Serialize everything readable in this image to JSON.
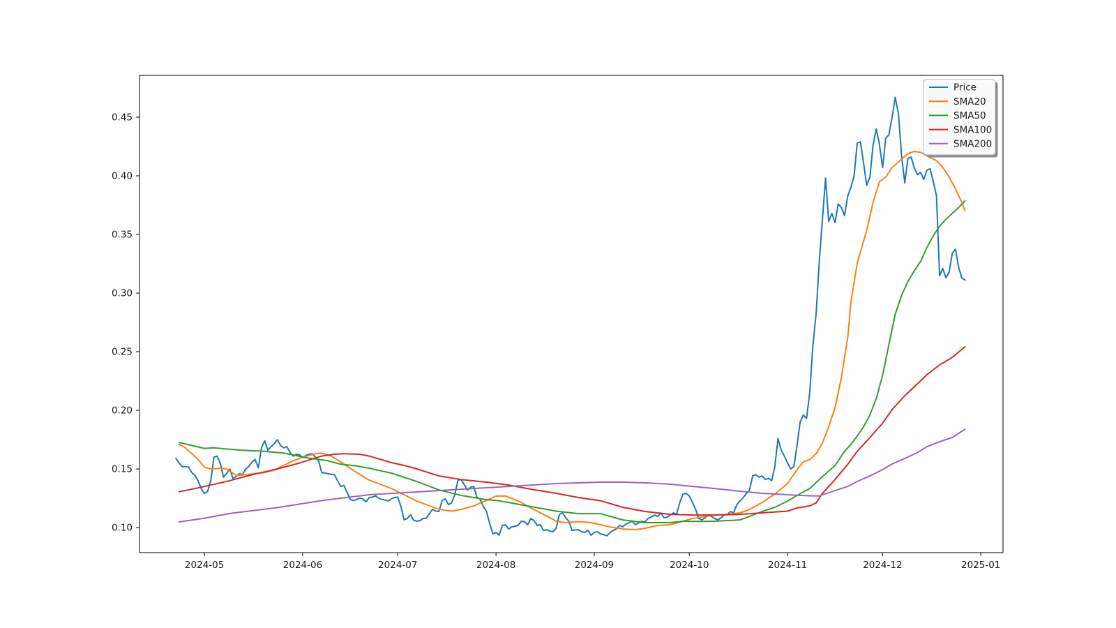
{
  "figure": {
    "background_color": "#ffffff",
    "plot_border_color": "#000000"
  },
  "chart_data": {
    "type": "line",
    "title": "",
    "xlabel": "",
    "ylabel": "",
    "grid": false,
    "x_axis": {
      "epoch": "2024-04-22",
      "domain_days": [
        -11.5,
        261
      ],
      "ticks": [
        {
          "day": 9,
          "label": "2024-05"
        },
        {
          "day": 40,
          "label": "2024-06"
        },
        {
          "day": 70,
          "label": "2024-07"
        },
        {
          "day": 101,
          "label": "2024-08"
        },
        {
          "day": 132,
          "label": "2024-09"
        },
        {
          "day": 162,
          "label": "2024-10"
        },
        {
          "day": 193,
          "label": "2024-11"
        },
        {
          "day": 223,
          "label": "2024-12"
        },
        {
          "day": 254,
          "label": "2025-01"
        }
      ]
    },
    "y_axis": {
      "domain": [
        0.0786,
        0.4857
      ],
      "ticks": [
        0.1,
        0.15,
        0.2,
        0.25,
        0.3,
        0.35,
        0.4,
        0.45
      ]
    },
    "legend": {
      "position": "upper-right",
      "border_color": "#b0b0b0",
      "fill_color": "#ffffff",
      "shadow": true,
      "shadow_color": "#8a8a8a",
      "entries": [
        "Price",
        "SMA20",
        "SMA50",
        "SMA100",
        "SMA200"
      ]
    },
    "series": [
      {
        "name": "Price",
        "color": "#1f77b4",
        "line_width": 2,
        "start_day": 0,
        "step_days": 1,
        "values": [
          0.159,
          0.155,
          0.152,
          0.152,
          0.1515,
          0.147,
          0.1445,
          0.14,
          0.133,
          0.129,
          0.131,
          0.14,
          0.16,
          0.161,
          0.155,
          0.143,
          0.146,
          0.15,
          0.142,
          0.1435,
          0.146,
          0.145,
          0.15,
          0.152,
          0.156,
          0.158,
          0.151,
          0.168,
          0.174,
          0.166,
          0.169,
          0.1715,
          0.175,
          0.17,
          0.168,
          0.169,
          0.164,
          0.161,
          0.1625,
          0.162,
          0.16,
          0.1615,
          0.1625,
          0.163,
          0.16,
          0.157,
          0.147,
          0.1465,
          0.146,
          0.1455,
          0.145,
          0.14,
          0.135,
          0.136,
          0.13,
          0.124,
          0.123,
          0.124,
          0.125,
          0.1245,
          0.122,
          0.1256,
          0.126,
          0.127,
          0.125,
          0.124,
          0.1235,
          0.1226,
          0.1245,
          0.1256,
          0.126,
          0.118,
          0.1065,
          0.1077,
          0.111,
          0.1064,
          0.1054,
          0.106,
          0.1077,
          0.108,
          0.112,
          0.1155,
          0.114,
          0.1137,
          0.1232,
          0.1244,
          0.1196,
          0.121,
          0.128,
          0.1405,
          0.141,
          0.1365,
          0.132,
          0.1345,
          0.135,
          0.1256,
          0.124,
          0.118,
          0.1137,
          0.1036,
          0.0946,
          0.0958,
          0.0935,
          0.1018,
          0.1024,
          0.0988,
          0.1006,
          0.1012,
          0.1018,
          0.1054,
          0.105,
          0.1024,
          0.1077,
          0.106,
          0.1018,
          0.1024,
          0.0976,
          0.0982,
          0.097,
          0.0964,
          0.0994,
          0.1113,
          0.1125,
          0.1083,
          0.1054,
          0.0976,
          0.098,
          0.0982,
          0.0964,
          0.0958,
          0.0976,
          0.0935,
          0.0958,
          0.0964,
          0.0946,
          0.094,
          0.0929,
          0.0958,
          0.0976,
          0.0988,
          0.1018,
          0.1006,
          0.103,
          0.1042,
          0.1054,
          0.1024,
          0.104,
          0.1054,
          0.1048,
          0.1077,
          0.109,
          0.1107,
          0.1095,
          0.1125,
          0.1083,
          0.109,
          0.1107,
          0.1125,
          0.1113,
          0.1214,
          0.1286,
          0.129,
          0.127,
          0.1214,
          0.1155,
          0.1077,
          0.1065,
          0.1083,
          0.1107,
          0.1095,
          0.1077,
          0.1065,
          0.1083,
          0.1107,
          0.1113,
          0.1137,
          0.1125,
          0.1196,
          0.1226,
          0.1256,
          0.129,
          0.132,
          0.144,
          0.145,
          0.143,
          0.144,
          0.141,
          0.142,
          0.14,
          0.152,
          0.176,
          0.166,
          0.161,
          0.155,
          0.15,
          0.152,
          0.17,
          0.19,
          0.196,
          0.193,
          0.215,
          0.255,
          0.282,
          0.326,
          0.362,
          0.398,
          0.361,
          0.368,
          0.36,
          0.376,
          0.373,
          0.366,
          0.383,
          0.39,
          0.4,
          0.428,
          0.429,
          0.411,
          0.392,
          0.399,
          0.426,
          0.44,
          0.427,
          0.407,
          0.432,
          0.435,
          0.45,
          0.467,
          0.453,
          0.417,
          0.394,
          0.415,
          0.416,
          0.407,
          0.401,
          0.403,
          0.397,
          0.405,
          0.406,
          0.395,
          0.383,
          0.315,
          0.321,
          0.313,
          0.318,
          0.334,
          0.3375,
          0.322,
          0.313,
          0.311
        ]
      },
      {
        "name": "SMA20",
        "color": "#ff7f0e",
        "line_width": 2,
        "points": [
          [
            1,
            0.171
          ],
          [
            3,
            0.168
          ],
          [
            5,
            0.163
          ],
          [
            7,
            0.158
          ],
          [
            9,
            0.1515
          ],
          [
            11,
            0.15
          ],
          [
            14,
            0.1505
          ],
          [
            16,
            0.15
          ],
          [
            19,
            0.1445
          ],
          [
            22,
            0.145
          ],
          [
            25,
            0.146
          ],
          [
            28,
            0.147
          ],
          [
            31,
            0.149
          ],
          [
            34,
            0.153
          ],
          [
            37,
            0.157
          ],
          [
            40,
            0.16
          ],
          [
            44,
            0.163
          ],
          [
            46,
            0.1635
          ],
          [
            49,
            0.161
          ],
          [
            52,
            0.156
          ],
          [
            57,
            0.147
          ],
          [
            60,
            0.142
          ],
          [
            61,
            0.1405
          ],
          [
            68,
            0.1333
          ],
          [
            76,
            0.1226
          ],
          [
            83,
            0.1155
          ],
          [
            87,
            0.114
          ],
          [
            90,
            0.1155
          ],
          [
            94,
            0.1185
          ],
          [
            98,
            0.1232
          ],
          [
            101,
            0.1268
          ],
          [
            104,
            0.127
          ],
          [
            109,
            0.1214
          ],
          [
            112,
            0.1167
          ],
          [
            116,
            0.1113
          ],
          [
            120,
            0.1054
          ],
          [
            123,
            0.1042
          ],
          [
            127,
            0.105
          ],
          [
            131,
            0.1042
          ],
          [
            134,
            0.1024
          ],
          [
            137,
            0.1005
          ],
          [
            141,
            0.0988
          ],
          [
            145,
            0.0982
          ],
          [
            148,
            0.0994
          ],
          [
            152,
            0.1018
          ],
          [
            156,
            0.1024
          ],
          [
            160,
            0.1054
          ],
          [
            163,
            0.1077
          ],
          [
            167,
            0.1095
          ],
          [
            170,
            0.1107
          ],
          [
            174,
            0.1113
          ],
          [
            178,
            0.1125
          ],
          [
            181,
            0.1155
          ],
          [
            185,
            0.1214
          ],
          [
            189,
            0.1286
          ],
          [
            193,
            0.1375
          ],
          [
            196,
            0.1494
          ],
          [
            198,
            0.156
          ],
          [
            200,
            0.158
          ],
          [
            202,
            0.163
          ],
          [
            204,
            0.172
          ],
          [
            206,
            0.186
          ],
          [
            208,
            0.202
          ],
          [
            210,
            0.228
          ],
          [
            212,
            0.262
          ],
          [
            213,
            0.292
          ],
          [
            215,
            0.3256
          ],
          [
            218,
            0.3536
          ],
          [
            220,
            0.3774
          ],
          [
            222,
            0.395
          ],
          [
            224,
            0.399
          ],
          [
            226,
            0.4071
          ],
          [
            229,
            0.4143
          ],
          [
            231,
            0.419
          ],
          [
            233,
            0.4208
          ],
          [
            235,
            0.42
          ],
          [
            237,
            0.417
          ],
          [
            240,
            0.413
          ],
          [
            242,
            0.4071
          ],
          [
            244,
            0.399
          ],
          [
            246,
            0.389
          ],
          [
            248,
            0.3774
          ],
          [
            249,
            0.37
          ]
        ]
      },
      {
        "name": "SMA50",
        "color": "#2ca02c",
        "line_width": 2,
        "points": [
          [
            1,
            0.1726
          ],
          [
            5,
            0.17
          ],
          [
            9,
            0.1675
          ],
          [
            12,
            0.168
          ],
          [
            16,
            0.167
          ],
          [
            21,
            0.166
          ],
          [
            28,
            0.165
          ],
          [
            34,
            0.1635
          ],
          [
            37,
            0.162
          ],
          [
            40,
            0.16
          ],
          [
            44,
            0.1585
          ],
          [
            48,
            0.157
          ],
          [
            52,
            0.154
          ],
          [
            57,
            0.1525
          ],
          [
            61,
            0.1506
          ],
          [
            68,
            0.1464
          ],
          [
            76,
            0.1393
          ],
          [
            83,
            0.1321
          ],
          [
            90,
            0.1274
          ],
          [
            98,
            0.1238
          ],
          [
            101,
            0.1232
          ],
          [
            105,
            0.1214
          ],
          [
            112,
            0.1179
          ],
          [
            120,
            0.114
          ],
          [
            127,
            0.1119
          ],
          [
            134,
            0.1119
          ],
          [
            141,
            0.1065
          ],
          [
            148,
            0.1042
          ],
          [
            156,
            0.1042
          ],
          [
            160,
            0.1054
          ],
          [
            165,
            0.1052
          ],
          [
            170,
            0.1054
          ],
          [
            178,
            0.1065
          ],
          [
            181,
            0.1095
          ],
          [
            185,
            0.1137
          ],
          [
            189,
            0.1173
          ],
          [
            193,
            0.1226
          ],
          [
            196,
            0.1274
          ],
          [
            200,
            0.1333
          ],
          [
            204,
            0.1434
          ],
          [
            208,
            0.153
          ],
          [
            211,
            0.165
          ],
          [
            213,
            0.171
          ],
          [
            215,
            0.178
          ],
          [
            217,
            0.186
          ],
          [
            219,
            0.196
          ],
          [
            221,
            0.21
          ],
          [
            223,
            0.23
          ],
          [
            225,
            0.256
          ],
          [
            227,
            0.282
          ],
          [
            229,
            0.298
          ],
          [
            231,
            0.31
          ],
          [
            233,
            0.319
          ],
          [
            235,
            0.327
          ],
          [
            237,
            0.339
          ],
          [
            239,
            0.349
          ],
          [
            241,
            0.357
          ],
          [
            243,
            0.363
          ],
          [
            245,
            0.368
          ],
          [
            247,
            0.373
          ],
          [
            249,
            0.3786
          ]
        ]
      },
      {
        "name": "SMA100",
        "color": "#d62728",
        "line_width": 2,
        "points": [
          [
            1,
            0.1305
          ],
          [
            9,
            0.135
          ],
          [
            17,
            0.14
          ],
          [
            24,
            0.145
          ],
          [
            32,
            0.15
          ],
          [
            39,
            0.155
          ],
          [
            46,
            0.161
          ],
          [
            50,
            0.1625
          ],
          [
            53,
            0.163
          ],
          [
            58,
            0.1625
          ],
          [
            61,
            0.161
          ],
          [
            68,
            0.1554
          ],
          [
            72,
            0.153
          ],
          [
            76,
            0.15
          ],
          [
            83,
            0.144
          ],
          [
            90,
            0.141
          ],
          [
            98,
            0.1387
          ],
          [
            105,
            0.1363
          ],
          [
            112,
            0.1327
          ],
          [
            120,
            0.1292
          ],
          [
            127,
            0.1256
          ],
          [
            134,
            0.1229
          ],
          [
            141,
            0.1173
          ],
          [
            148,
            0.1137
          ],
          [
            156,
            0.1113
          ],
          [
            163,
            0.1107
          ],
          [
            170,
            0.1107
          ],
          [
            178,
            0.1113
          ],
          [
            185,
            0.1125
          ],
          [
            193,
            0.114
          ],
          [
            196,
            0.1167
          ],
          [
            200,
            0.1185
          ],
          [
            202,
            0.121
          ],
          [
            204,
            0.129
          ],
          [
            208,
            0.141
          ],
          [
            212,
            0.154
          ],
          [
            215,
            0.165
          ],
          [
            219,
            0.1768
          ],
          [
            223,
            0.189
          ],
          [
            226,
            0.2006
          ],
          [
            230,
            0.2125
          ],
          [
            234,
            0.2226
          ],
          [
            237,
            0.2304
          ],
          [
            241,
            0.2387
          ],
          [
            245,
            0.2452
          ],
          [
            249,
            0.2542
          ]
        ]
      },
      {
        "name": "SMA200",
        "color": "#9467bd",
        "line_width": 2,
        "points": [
          [
            1,
            0.1048
          ],
          [
            9,
            0.108
          ],
          [
            17,
            0.112
          ],
          [
            32,
            0.117
          ],
          [
            46,
            0.123
          ],
          [
            61,
            0.128
          ],
          [
            76,
            0.1304
          ],
          [
            90,
            0.1327
          ],
          [
            105,
            0.1351
          ],
          [
            120,
            0.1375
          ],
          [
            134,
            0.1387
          ],
          [
            141,
            0.1387
          ],
          [
            148,
            0.1381
          ],
          [
            156,
            0.137
          ],
          [
            163,
            0.1351
          ],
          [
            170,
            0.1333
          ],
          [
            178,
            0.131
          ],
          [
            185,
            0.1292
          ],
          [
            193,
            0.128
          ],
          [
            197,
            0.1274
          ],
          [
            200,
            0.1271
          ],
          [
            203,
            0.127
          ],
          [
            208,
            0.1315
          ],
          [
            212,
            0.1351
          ],
          [
            215,
            0.1393
          ],
          [
            219,
            0.144
          ],
          [
            223,
            0.1494
          ],
          [
            226,
            0.1542
          ],
          [
            230,
            0.159
          ],
          [
            234,
            0.164
          ],
          [
            237,
            0.169
          ],
          [
            241,
            0.1732
          ],
          [
            245,
            0.1768
          ],
          [
            249,
            0.1839
          ]
        ]
      }
    ]
  }
}
